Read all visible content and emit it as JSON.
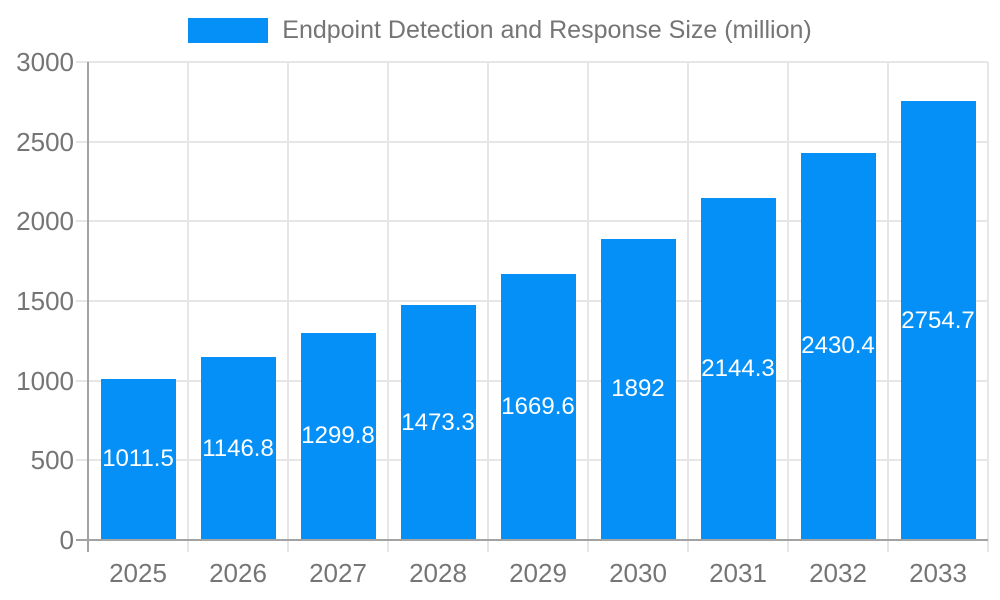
{
  "legend": {
    "label": "Endpoint Detection and Response Size (million)"
  },
  "chart_data": {
    "type": "bar",
    "title": "Endpoint Detection and Response Size (million)",
    "xlabel": "",
    "ylabel": "",
    "categories": [
      "2025",
      "2026",
      "2027",
      "2028",
      "2029",
      "2030",
      "2031",
      "2032",
      "2033"
    ],
    "series": [
      {
        "name": "Endpoint Detection and Response Size (million)",
        "values": [
          1011.5,
          1146.8,
          1299.8,
          1473.3,
          1669.6,
          1892,
          2144.3,
          2430.4,
          2754.7
        ],
        "labels": [
          "1011.5",
          "1146.8",
          "1299.8",
          "1473.3",
          "1669.6",
          "1892",
          "2144.3",
          "2430.4",
          "2754.7"
        ]
      }
    ],
    "ylim": [
      0,
      3000
    ],
    "y_ticks": [
      0,
      500,
      1000,
      1500,
      2000,
      2500,
      3000
    ],
    "grid": true,
    "legend_position": "top",
    "colors": {
      "bar": "#0590f8",
      "bar_label": "#ffffff",
      "axis_text": "#757575",
      "grid_line": "#e6e6e6",
      "axis_line": "#a3a3a3"
    }
  }
}
